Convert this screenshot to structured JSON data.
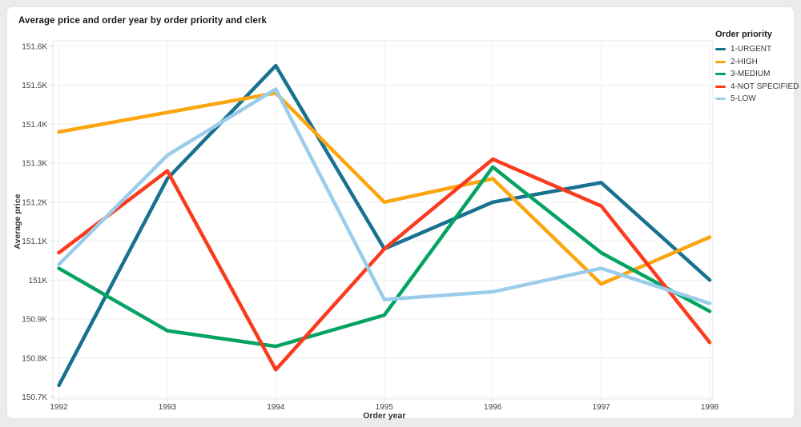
{
  "page": {
    "background_color": "#ebebeb",
    "card_color": "#ffffff"
  },
  "legend": {
    "title": "Order priority"
  },
  "chart_data": {
    "type": "line",
    "title": "Average price and order year by order priority and clerk",
    "xlabel": "Order year",
    "ylabel": "Average price",
    "x": [
      1992,
      1993,
      1994,
      1995,
      1996,
      1997,
      1998
    ],
    "xtick_labels": [
      "1992",
      "1993",
      "1994",
      "1995",
      "1996",
      "1997",
      "1998"
    ],
    "ylim": [
      150.7,
      151.6
    ],
    "yticks": [
      150.7,
      150.8,
      150.9,
      151.0,
      151.1,
      151.2,
      151.3,
      151.4,
      151.5,
      151.6
    ],
    "ytick_labels": [
      "150.7K",
      "150.8K",
      "150.9K",
      "151K",
      "151.1K",
      "151.2K",
      "151.3K",
      "151.4K",
      "151.5K",
      "151.6K"
    ],
    "grid": true,
    "legend_position": "right",
    "series": [
      {
        "name": "1-URGENT",
        "color": "#17718f",
        "values": [
          150.73,
          151.26,
          151.55,
          151.08,
          151.2,
          151.25,
          151.0
        ]
      },
      {
        "name": "2-HIGH",
        "color": "#fba510",
        "values": [
          151.38,
          151.43,
          151.48,
          151.2,
          151.26,
          150.99,
          151.11
        ]
      },
      {
        "name": "3-MEDIUM",
        "color": "#04a362",
        "values": [
          151.03,
          150.87,
          150.83,
          150.91,
          151.29,
          151.07,
          150.92
        ]
      },
      {
        "name": "4-NOT SPECIFIED",
        "color": "#fa3b1d",
        "values": [
          151.07,
          151.28,
          150.77,
          151.08,
          151.31,
          151.19,
          150.84
        ]
      },
      {
        "name": "5-LOW",
        "color": "#9bcdeb",
        "values": [
          151.04,
          151.32,
          151.49,
          150.95,
          150.97,
          151.03,
          150.94
        ]
      }
    ],
    "gridline_color": "#ededed",
    "plot_border_color": "#e7e7e7",
    "tick_mark_color": "#d6d6d6"
  }
}
